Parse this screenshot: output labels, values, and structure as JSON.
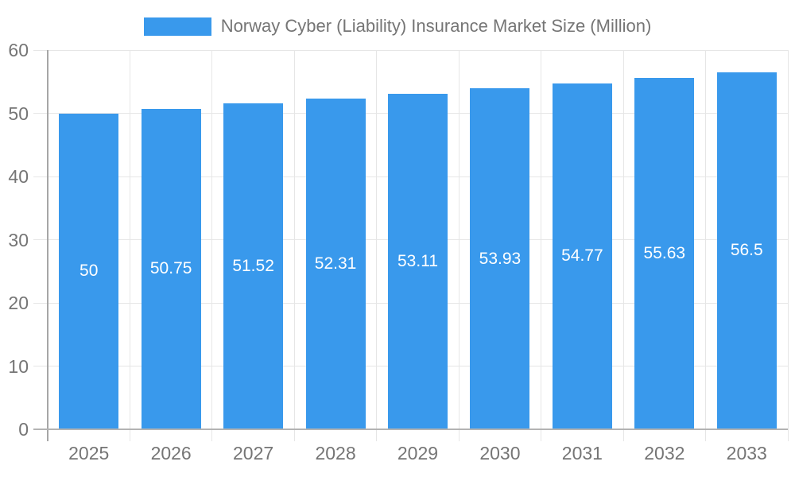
{
  "legend": {
    "label": "Norway Cyber (Liability) Insurance Market Size (Million)"
  },
  "colors": {
    "bar": "#3999EC",
    "grid": "#E6E6E6",
    "axis_x": "#B3B3B3",
    "axis_y": "#A6A6A6",
    "text": "#757575",
    "bar_label": "#FFFFFF",
    "background": "#FFFFFF"
  },
  "chart_data": {
    "type": "bar",
    "title": "Norway Cyber (Liability) Insurance Market Size (Million)",
    "categories": [
      "2025",
      "2026",
      "2027",
      "2028",
      "2029",
      "2030",
      "2031",
      "2032",
      "2033"
    ],
    "values": [
      50,
      50.75,
      51.52,
      52.31,
      53.11,
      53.93,
      54.77,
      55.63,
      56.5
    ],
    "value_labels": [
      "50",
      "50.75",
      "51.52",
      "52.31",
      "53.11",
      "53.93",
      "54.77",
      "55.63",
      "56.5"
    ],
    "xlabel": "",
    "ylabel": "",
    "ylim": [
      0,
      60
    ],
    "yticks": [
      0,
      10,
      20,
      30,
      40,
      50,
      60
    ],
    "grid": true,
    "legend_position": "top",
    "bar_label_position": "center"
  }
}
